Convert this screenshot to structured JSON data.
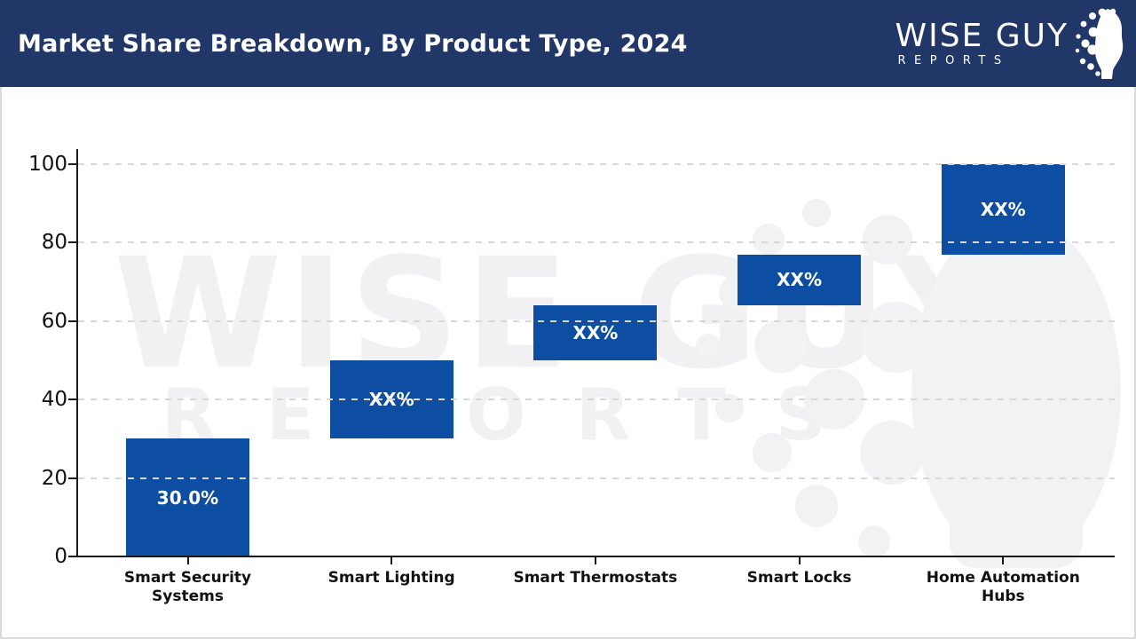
{
  "header": {
    "title": "Market Share Breakdown, By Product Type, 2024",
    "bg_color": "#213768"
  },
  "logo": {
    "line1": "WISE GUY",
    "line2": "REPORTS"
  },
  "watermark": {
    "line1": "WISE GUY",
    "line2": "REPORTS"
  },
  "chart_data": {
    "type": "bar",
    "subtype": "waterfall-stacked-market-share",
    "title": "Market Share Breakdown, By Product Type, 2024",
    "xlabel": "",
    "ylabel": "",
    "categories": [
      "Smart Security\nSystems",
      "Smart Lighting",
      "Smart Thermostats",
      "Smart Locks",
      "Home Automation\nHubs"
    ],
    "segments": [
      {
        "category": "Smart Security Systems",
        "start": 0,
        "end": 30,
        "value": 30,
        "label": "30.0%"
      },
      {
        "category": "Smart Lighting",
        "start": 30,
        "end": 50,
        "value": 20,
        "label": "XX%"
      },
      {
        "category": "Smart Thermostats",
        "start": 50,
        "end": 64,
        "value": 14,
        "label": "XX%"
      },
      {
        "category": "Smart Locks",
        "start": 64,
        "end": 77,
        "value": 13,
        "label": "XX%"
      },
      {
        "category": "Home Automation Hubs",
        "start": 77,
        "end": 100,
        "value": 23,
        "label": "XX%"
      }
    ],
    "yticks": [
      0,
      20,
      40,
      60,
      80,
      100
    ],
    "ylim": [
      0,
      104
    ],
    "grid": "horizontal-dashed",
    "legend": "none",
    "bar_color": "#0d4da2",
    "grid_color": "#d7d7d7",
    "header_color": "#213768"
  }
}
